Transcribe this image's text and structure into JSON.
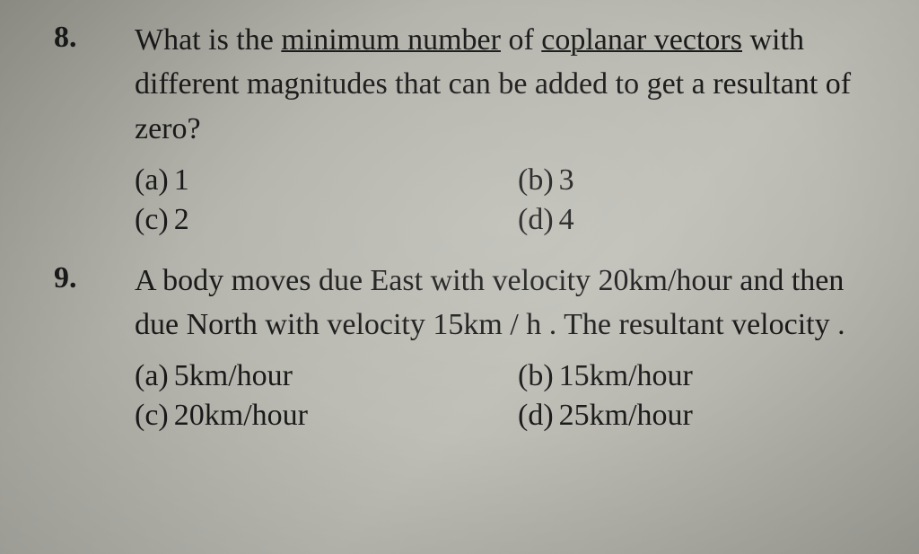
{
  "q8": {
    "number": "8.",
    "stem_prefix": "What is the ",
    "stem_u1": "minimum number",
    "stem_mid": " of ",
    "stem_u2": "coplanar vectors",
    "stem_rest": " with different magnitudes that can be added to get a resultant of zero?",
    "options": {
      "a": {
        "label": "(a)",
        "text": "1"
      },
      "b": {
        "label": "(b)",
        "text": "3"
      },
      "c": {
        "label": "(c)",
        "text": "2"
      },
      "d": {
        "label": "(d)",
        "text": "4"
      }
    }
  },
  "q9": {
    "number": "9.",
    "stem": "A body moves due East with velocity 20km/hour and then due North with velocity 15km / h . The resultant velocity .",
    "options": {
      "a": {
        "label": "(a)",
        "text": "5km/hour"
      },
      "b": {
        "label": "(b)",
        "text": "15km/hour"
      },
      "c": {
        "label": "(c)",
        "text": "20km/hour"
      },
      "d": {
        "label": "(d)",
        "text": "25km/hour"
      }
    }
  }
}
